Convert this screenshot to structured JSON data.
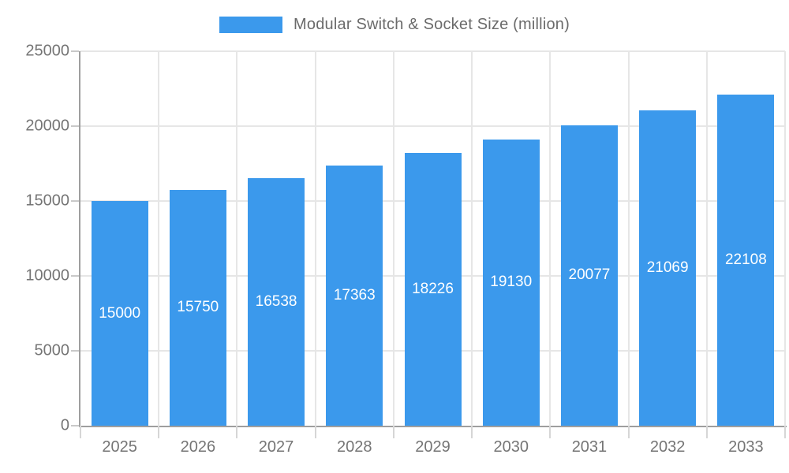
{
  "chart_data": {
    "type": "bar",
    "title": "",
    "legend": {
      "label": "Modular Switch & Socket Size (million)",
      "position": "top"
    },
    "categories": [
      "2025",
      "2026",
      "2027",
      "2028",
      "2029",
      "2030",
      "2031",
      "2032",
      "2033"
    ],
    "series": [
      {
        "name": "Modular Switch & Socket Size (million)",
        "values": [
          15000,
          15750,
          16538,
          17363,
          18226,
          19130,
          20077,
          21069,
          22108
        ]
      }
    ],
    "value_labels": [
      "15000",
      "15750",
      "16538",
      "17363",
      "18226",
      "19130",
      "20077",
      "21069",
      "22108"
    ],
    "xlabel": "",
    "ylabel": "",
    "ylim": [
      0,
      25000
    ],
    "yticks": [
      0,
      5000,
      10000,
      15000,
      20000,
      25000
    ],
    "ytick_labels": [
      "0",
      "5000",
      "10000",
      "15000",
      "20000",
      "25000"
    ],
    "grid": true
  },
  "colors": {
    "bar": "#3b99ec",
    "grid": "#e6e6e6",
    "axis_line": "#9e9e9e",
    "axis_text": "#757575",
    "legend_text": "#6b6b6b",
    "value_label": "#ffffff",
    "background": "#ffffff"
  }
}
